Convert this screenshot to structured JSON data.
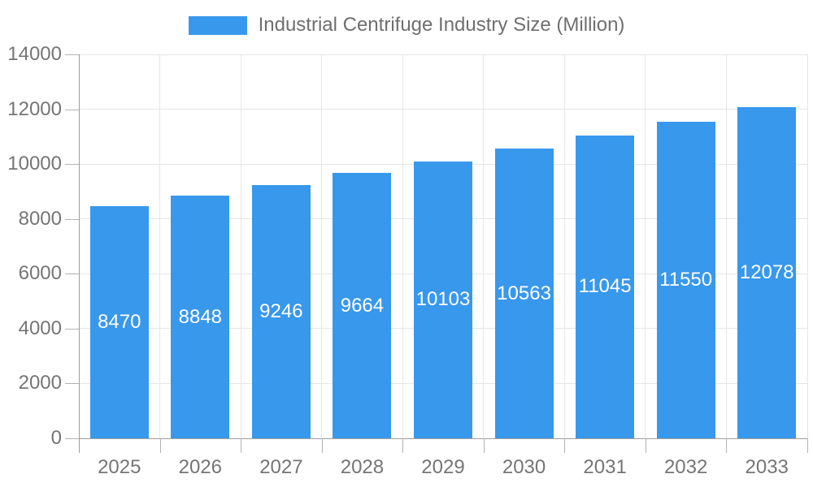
{
  "chart_data": {
    "type": "bar",
    "title": "Industrial Centrifuge Industry Size (Million)",
    "categories": [
      "2025",
      "2026",
      "2027",
      "2028",
      "2029",
      "2030",
      "2031",
      "2032",
      "2033"
    ],
    "values": [
      8470,
      8848,
      9246,
      9664,
      10103,
      10563,
      11045,
      11550,
      12078
    ],
    "xlabel": "",
    "ylabel": "",
    "ylim": [
      0,
      14000
    ],
    "ytick_step": 2000,
    "ytick_labels": [
      "0",
      "2000",
      "4000",
      "6000",
      "8000",
      "10000",
      "12000",
      "14000"
    ],
    "grid": true,
    "legend_position": "top",
    "colors": {
      "bar": "#3898ec",
      "bar_label": "#ffffff",
      "grid": "#e6e6e6",
      "axis": "#9e9e9e",
      "tick": "#b3b3b3",
      "text": "#757575"
    }
  }
}
